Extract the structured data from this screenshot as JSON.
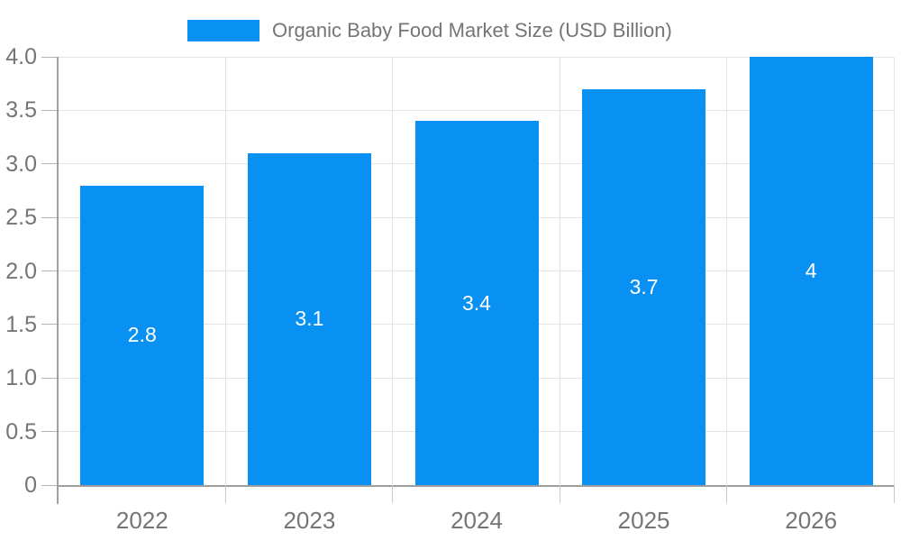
{
  "chart_data": {
    "type": "bar",
    "title": "Organic Baby Food Market Size (USD Billion)",
    "categories": [
      "2022",
      "2023",
      "2024",
      "2025",
      "2026"
    ],
    "values": [
      2.8,
      3.1,
      3.4,
      3.7,
      4
    ],
    "value_labels": [
      "2.8",
      "3.1",
      "3.4",
      "3.7",
      "4"
    ],
    "yticks": [
      "0",
      "0.5",
      "1.0",
      "1.5",
      "2.0",
      "2.5",
      "3.0",
      "3.5",
      "4.0"
    ],
    "ylim": [
      0,
      4
    ],
    "xlabel": "",
    "ylabel": "",
    "grid": "horizontal and vertical category boundaries",
    "legend_position": "top-center",
    "colors": {
      "bar": "#0891f2",
      "value_label": "#ffffff",
      "axis_line": "#9e9e9e",
      "gridline": "#e4e4e4",
      "tick_mark": "#b5b5b5",
      "tick_label": "#757575",
      "legend_text": "#757575",
      "background": "#ffffff"
    }
  }
}
